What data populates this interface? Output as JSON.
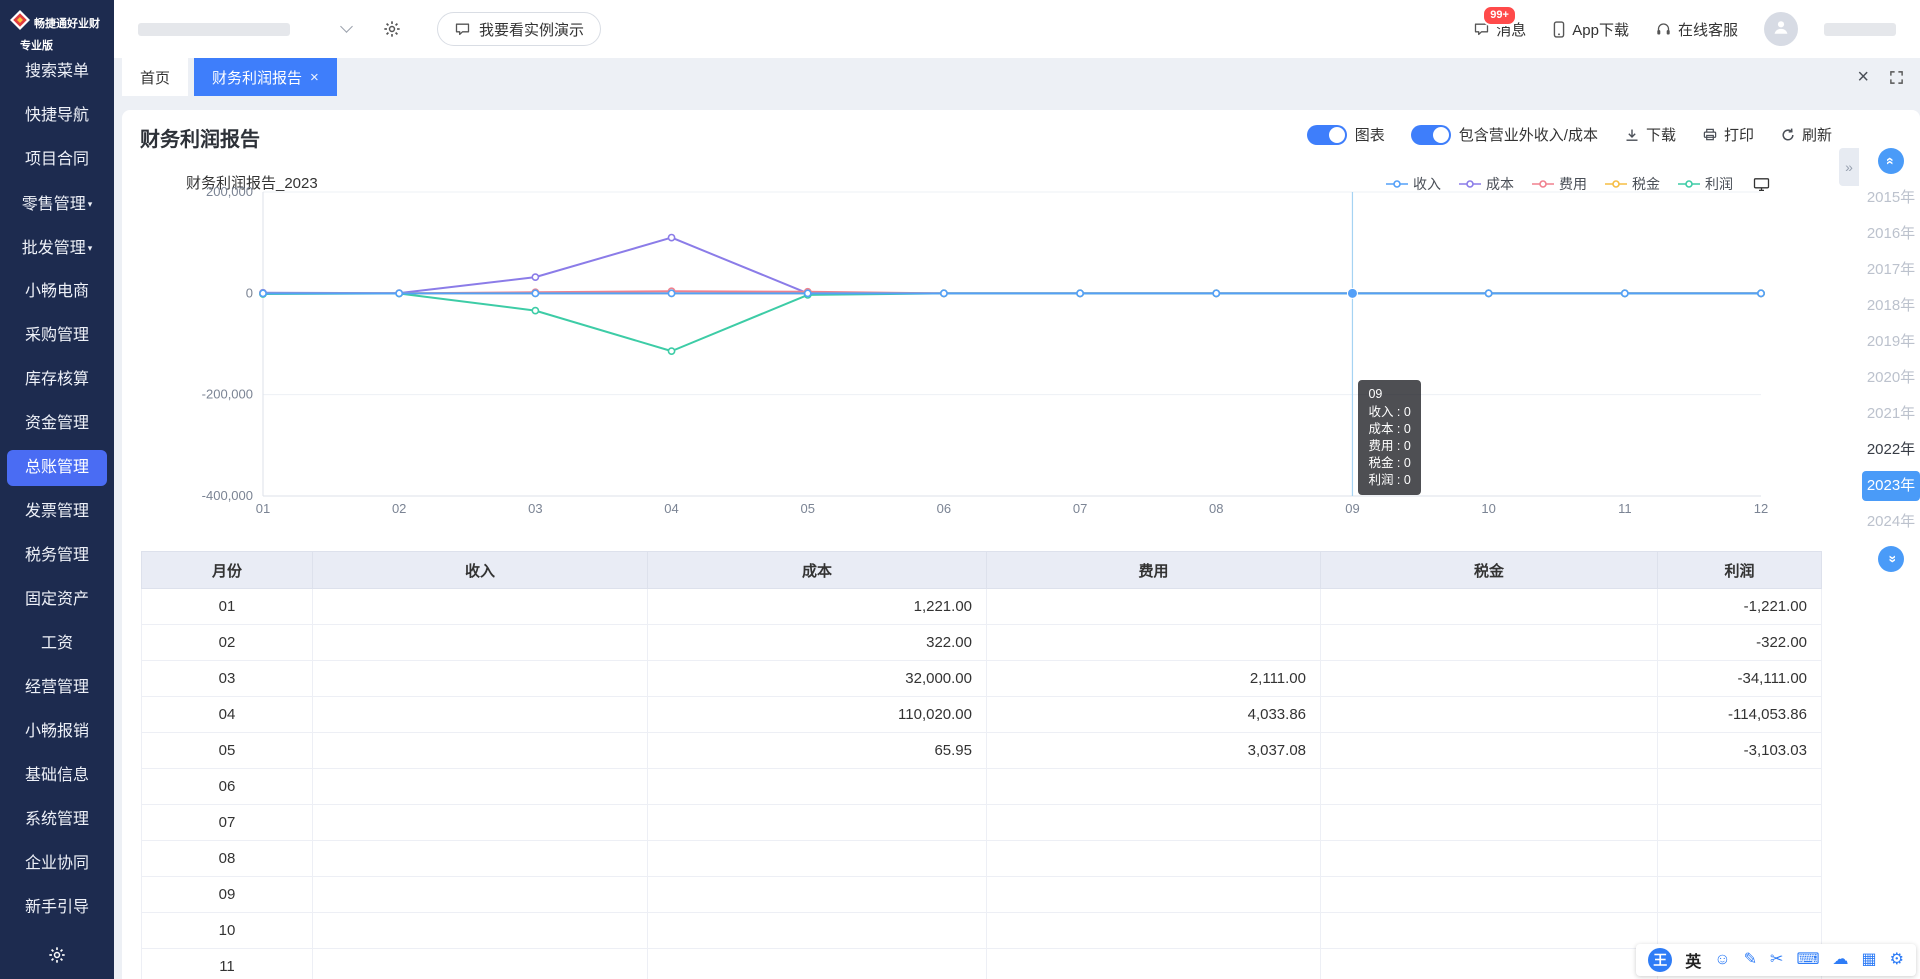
{
  "app": {
    "brand_line1": "畅捷通好业财",
    "brand_line2": "专业版",
    "demo_label": "我要看实例演示"
  },
  "topbar": {
    "messages_label": "消息",
    "messages_badge": "99+",
    "app_download_label": "App下载",
    "support_label": "在线客服"
  },
  "sidebar": {
    "items": [
      {
        "label": "搜索菜单"
      },
      {
        "label": "快捷导航"
      },
      {
        "label": "项目合同"
      },
      {
        "label": "零售管理",
        "arrow": true
      },
      {
        "label": "批发管理",
        "arrow": true
      },
      {
        "label": "小畅电商"
      },
      {
        "label": "采购管理"
      },
      {
        "label": "库存核算"
      },
      {
        "label": "资金管理"
      },
      {
        "label": "总账管理",
        "active": true
      },
      {
        "label": "发票管理"
      },
      {
        "label": "税务管理"
      },
      {
        "label": "固定资产"
      },
      {
        "label": "工资"
      },
      {
        "label": "经营管理"
      },
      {
        "label": "小畅报销"
      },
      {
        "label": "基础信息"
      },
      {
        "label": "系统管理"
      },
      {
        "label": "企业协同"
      },
      {
        "label": "新手引导"
      }
    ]
  },
  "tabs": [
    {
      "label": "首页",
      "active": false,
      "closable": false
    },
    {
      "label": "财务利润报告",
      "active": true,
      "closable": true
    }
  ],
  "page": {
    "title": "财务利润报告",
    "toggles": [
      {
        "label": "图表",
        "on": true
      },
      {
        "label": "包含营业外收入/成本",
        "on": true
      }
    ],
    "actions": [
      {
        "label": "下载"
      },
      {
        "label": "打印"
      },
      {
        "label": "刷新"
      }
    ]
  },
  "chart_data": {
    "type": "line",
    "title": "财务利润报告_2023",
    "x": [
      "01",
      "02",
      "03",
      "04",
      "05",
      "06",
      "07",
      "08",
      "09",
      "10",
      "11",
      "12"
    ],
    "ylim": [
      -400000,
      200000
    ],
    "yticks": [
      200000,
      0,
      -200000,
      -400000
    ],
    "ytick_labels": [
      "200,000",
      "0",
      "-200,000",
      "-400,000"
    ],
    "grid": true,
    "legend_position": "top-right",
    "series": [
      {
        "name": "收入",
        "color": "#54a0f8",
        "values": [
          0,
          0,
          0,
          0,
          0,
          0,
          0,
          0,
          0,
          0,
          0,
          0
        ]
      },
      {
        "name": "成本",
        "color": "#8b7ce8",
        "values": [
          1221,
          322,
          32000,
          110020,
          65.95,
          0,
          0,
          0,
          0,
          0,
          0,
          0
        ]
      },
      {
        "name": "费用",
        "color": "#f0808e",
        "values": [
          0,
          0,
          2111,
          4033.86,
          3037.08,
          0,
          0,
          0,
          0,
          0,
          0,
          0
        ]
      },
      {
        "name": "税金",
        "color": "#f6bd44",
        "values": [
          0,
          0,
          0,
          0,
          0,
          0,
          0,
          0,
          0,
          0,
          0,
          0
        ]
      },
      {
        "name": "利润",
        "color": "#3dcca6",
        "values": [
          -1221,
          -322,
          -34111,
          -114053.86,
          -3103.03,
          0,
          0,
          0,
          0,
          0,
          0,
          0
        ]
      }
    ],
    "tooltip": {
      "x_index": 8,
      "title": "09",
      "rows": [
        {
          "label": "收入",
          "value": "0"
        },
        {
          "label": "成本",
          "value": "0"
        },
        {
          "label": "费用",
          "value": "0"
        },
        {
          "label": "税金",
          "value": "0"
        },
        {
          "label": "利润",
          "value": "0"
        }
      ]
    }
  },
  "table": {
    "headers": [
      "月份",
      "收入",
      "成本",
      "费用",
      "税金",
      "利润"
    ],
    "rows": [
      [
        "01",
        "",
        "1,221.00",
        "",
        "",
        "-1,221.00"
      ],
      [
        "02",
        "",
        "322.00",
        "",
        "",
        "-322.00"
      ],
      [
        "03",
        "",
        "32,000.00",
        "2,111.00",
        "",
        "-34,111.00"
      ],
      [
        "04",
        "",
        "110,020.00",
        "4,033.86",
        "",
        "-114,053.86"
      ],
      [
        "05",
        "",
        "65.95",
        "3,037.08",
        "",
        "-3,103.03"
      ],
      [
        "06",
        "",
        "",
        "",
        "",
        ""
      ],
      [
        "07",
        "",
        "",
        "",
        "",
        ""
      ],
      [
        "08",
        "",
        "",
        "",
        "",
        ""
      ],
      [
        "09",
        "",
        "",
        "",
        "",
        ""
      ],
      [
        "10",
        "",
        "",
        "",
        "",
        ""
      ],
      [
        "11",
        "",
        "",
        "",
        "",
        ""
      ]
    ]
  },
  "year_panel": {
    "years": [
      "2015年",
      "2016年",
      "2017年",
      "2018年",
      "2019年",
      "2020年",
      "2021年",
      "2022年",
      "2023年",
      "2024年"
    ],
    "selected": "2023年",
    "highlighted": "2022年"
  },
  "ime": {
    "lang_button": "王",
    "mode": "英",
    "icons": [
      {
        "name": "smiley-icon",
        "glyph": "☺"
      },
      {
        "name": "pen-icon",
        "glyph": "✎"
      },
      {
        "name": "scissors-icon",
        "glyph": "✂"
      },
      {
        "name": "keyboard-icon",
        "glyph": "⌨"
      },
      {
        "name": "cloud-icon",
        "glyph": "☁"
      },
      {
        "name": "grid-icon",
        "glyph": "▦"
      },
      {
        "name": "gear-icon",
        "glyph": "⚙"
      }
    ]
  },
  "colors": {
    "sidebar_bg": "#1d2b4f",
    "sidebar_active": "#4a6cf3",
    "accent_blue": "#3e7efb",
    "year_selected": "#4a9bf8",
    "badge_red": "#ff4a4a",
    "table_header_bg": "#e9ecf5"
  }
}
